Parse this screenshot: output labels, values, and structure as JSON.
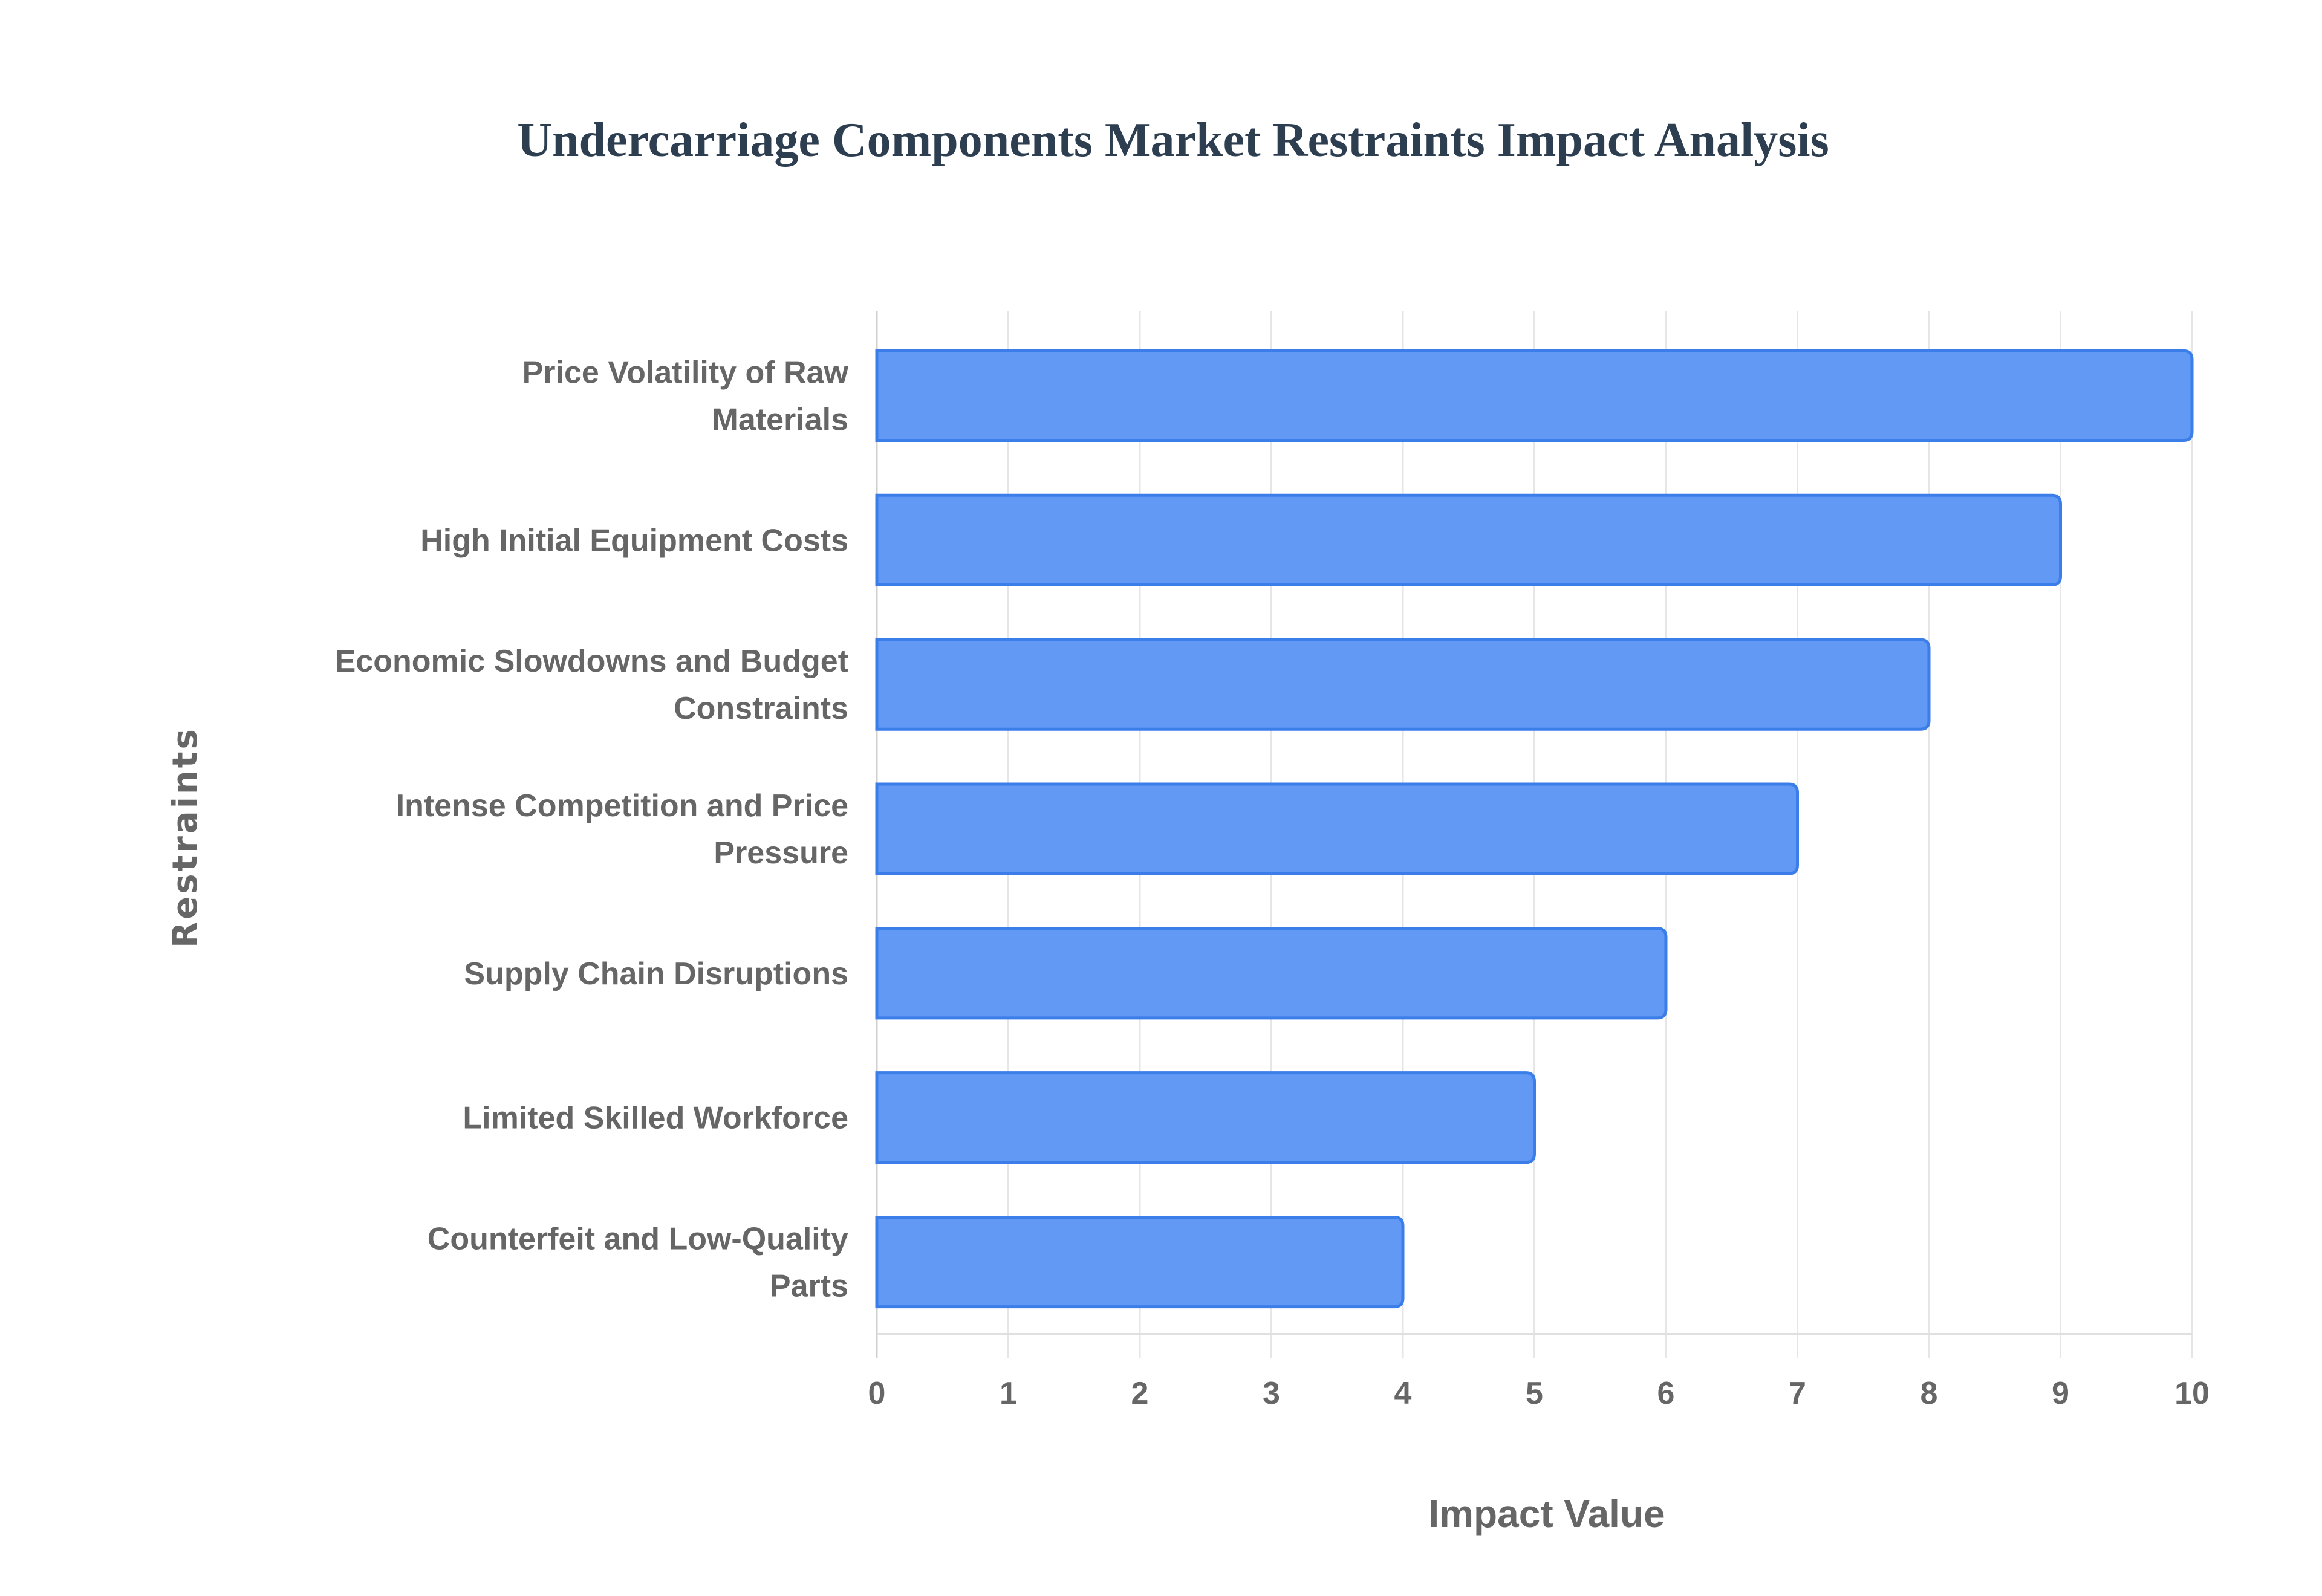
{
  "chart_data": {
    "type": "bar",
    "orientation": "horizontal",
    "title": "Undercarriage Components Market Restraints Impact Analysis",
    "xlabel": "Impact Value",
    "ylabel": "Restraints",
    "categories": [
      [
        "Price Volatility of Raw",
        "Materials"
      ],
      [
        "High Initial Equipment Costs"
      ],
      [
        "Economic Slowdowns and Budget",
        "Constraints"
      ],
      [
        "Intense Competition and Price",
        "Pressure"
      ],
      [
        "Supply Chain Disruptions"
      ],
      [
        "Limited Skilled Workforce"
      ],
      [
        "Counterfeit and Low-Quality",
        "Parts"
      ]
    ],
    "values": [
      10,
      9,
      8,
      7,
      6,
      5,
      4
    ],
    "xlim": [
      0,
      10
    ],
    "xticks": [
      "0",
      "1",
      "2",
      "3",
      "4",
      "5",
      "6",
      "7",
      "8",
      "9",
      "10"
    ],
    "grid": true,
    "colors": {
      "bar_fill": "#6199f5",
      "bar_stroke": "#3b7de9",
      "grid": "#e6e6e6"
    }
  }
}
